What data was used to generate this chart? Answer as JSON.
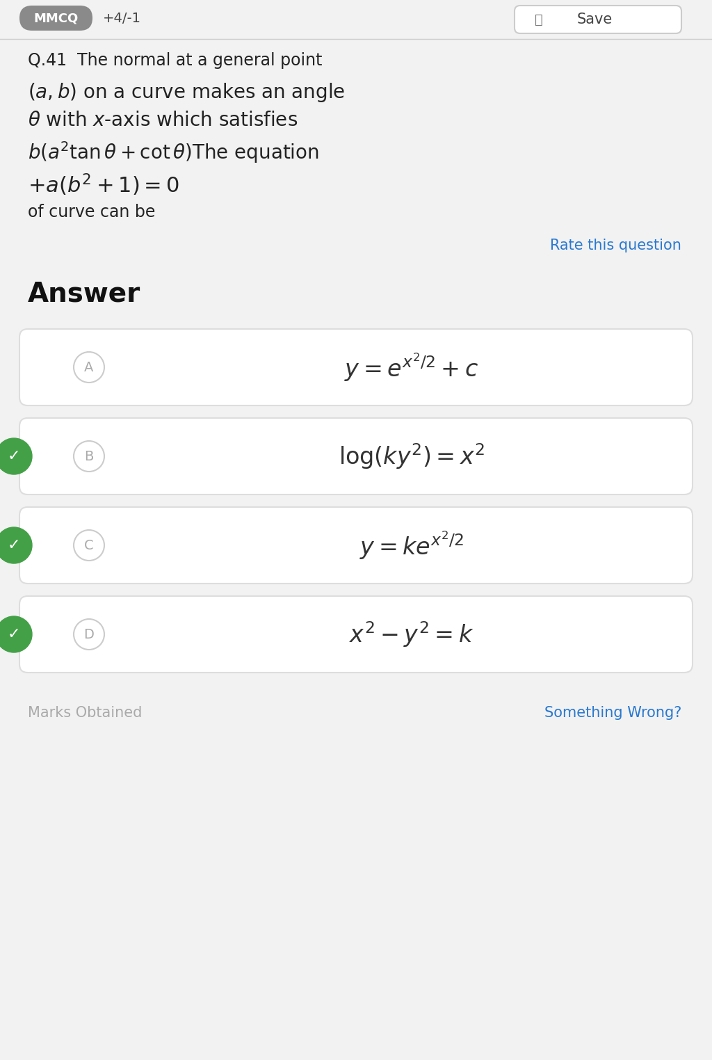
{
  "bg_color": "#f2f2f2",
  "white": "#ffffff",
  "header_bg": "#8a8a8a",
  "header_text": "+4/-1",
  "mmcq_label": "MMCQ",
  "save_text": "Save",
  "question_lines": [
    {
      "text": "Q.41  The normal at a general point",
      "math": false,
      "size": 17
    },
    {
      "text": "$(a, b)$ on a curve makes an angle",
      "math": true,
      "size": 20
    },
    {
      "text": "$\\theta$ with $x$-axis which satisfies",
      "math": true,
      "size": 20
    },
    {
      "text": "$b\\left(a^2 \\tan\\theta + \\cot\\theta\\right)$The equation",
      "math": true,
      "size": 20
    },
    {
      "text": "$+a\\left(b^2+1\\right) = 0$",
      "math": true,
      "size": 22
    },
    {
      "text": "of curve can be",
      "math": false,
      "size": 17
    }
  ],
  "rate_text": "Rate this question",
  "rate_color": "#2979d0",
  "answer_label": "Answer",
  "options": [
    {
      "letter": "A",
      "formula": "$y = e^{x^2/2} + c$",
      "correct": false
    },
    {
      "letter": "B",
      "formula": "$\\log(ky^2) = x^2$",
      "correct": true
    },
    {
      "letter": "C",
      "formula": "$y = ke^{x^2/2}$",
      "correct": true
    },
    {
      "letter": "D",
      "formula": "$x^2 - y^2 = k$",
      "correct": true
    }
  ],
  "green_check": "#43a047",
  "marks_text": "Marks Obtained",
  "marks_color": "#aaaaaa",
  "wrong_text": "Something Wrong?",
  "wrong_color": "#2979d0",
  "border_color": "#dddddd",
  "option_letter_color": "#aaaaaa"
}
